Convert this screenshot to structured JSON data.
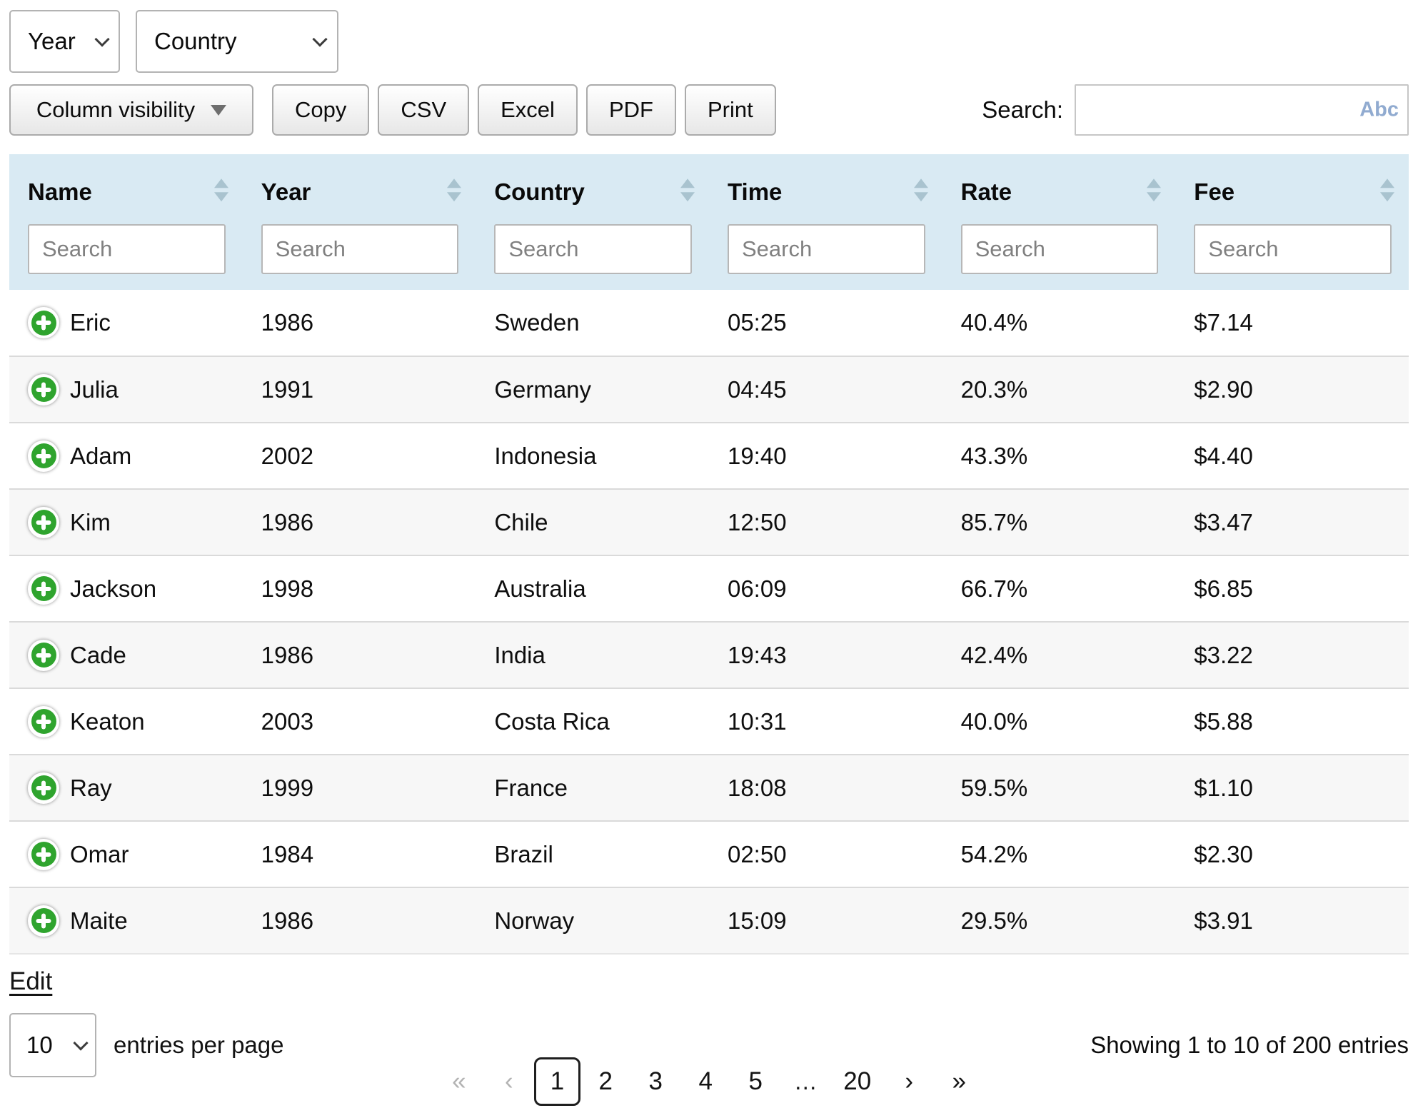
{
  "filters": {
    "year_value": "Year",
    "country_value": "Country"
  },
  "toolbar": {
    "column_visibility_label": "Column visibility",
    "export_buttons": [
      "Copy",
      "CSV",
      "Excel",
      "PDF",
      "Print"
    ],
    "search_label": "Search:",
    "search_value": "",
    "spellcheck_badge": "Abc"
  },
  "table": {
    "columns": [
      "Name",
      "Year",
      "Country",
      "Time",
      "Rate",
      "Fee"
    ],
    "column_search_placeholder": "Search",
    "rows": [
      [
        "Eric",
        "1986",
        "Sweden",
        "05:25",
        "40.4%",
        "$7.14"
      ],
      [
        "Julia",
        "1991",
        "Germany",
        "04:45",
        "20.3%",
        "$2.90"
      ],
      [
        "Adam",
        "2002",
        "Indonesia",
        "19:40",
        "43.3%",
        "$4.40"
      ],
      [
        "Kim",
        "1986",
        "Chile",
        "12:50",
        "85.7%",
        "$3.47"
      ],
      [
        "Jackson",
        "1998",
        "Australia",
        "06:09",
        "66.7%",
        "$6.85"
      ],
      [
        "Cade",
        "1986",
        "India",
        "19:43",
        "42.4%",
        "$3.22"
      ],
      [
        "Keaton",
        "2003",
        "Costa Rica",
        "10:31",
        "40.0%",
        "$5.88"
      ],
      [
        "Ray",
        "1999",
        "France",
        "18:08",
        "59.5%",
        "$1.10"
      ],
      [
        "Omar",
        "1984",
        "Brazil",
        "02:50",
        "54.2%",
        "$2.30"
      ],
      [
        "Maite",
        "1986",
        "Norway",
        "15:09",
        "29.5%",
        "$3.91"
      ]
    ]
  },
  "footer": {
    "edit_label": "Edit",
    "page_size_value": "10",
    "entries_label": "entries per page",
    "info": "Showing 1 to 10 of 200 entries"
  },
  "pagination": {
    "items": [
      {
        "label": "«",
        "state": "disabled"
      },
      {
        "label": "‹",
        "state": "disabled"
      },
      {
        "label": "1",
        "state": "current"
      },
      {
        "label": "2",
        "state": "normal"
      },
      {
        "label": "3",
        "state": "normal"
      },
      {
        "label": "4",
        "state": "normal"
      },
      {
        "label": "5",
        "state": "normal"
      },
      {
        "label": "…",
        "state": "ellipsis"
      },
      {
        "label": "20",
        "state": "normal"
      },
      {
        "label": "›",
        "state": "normal"
      },
      {
        "label": "»",
        "state": "normal"
      }
    ]
  },
  "colors": {
    "header_bg": "#d9eaf3",
    "row_stripe": "#f7f7f7",
    "row_border": "#dadada",
    "accent_green": "#2fa42e",
    "spellcheck_blue": "#91abd0",
    "sort_arrow": "#a9c3cf",
    "disabled_gray": "#b3b3b3"
  }
}
